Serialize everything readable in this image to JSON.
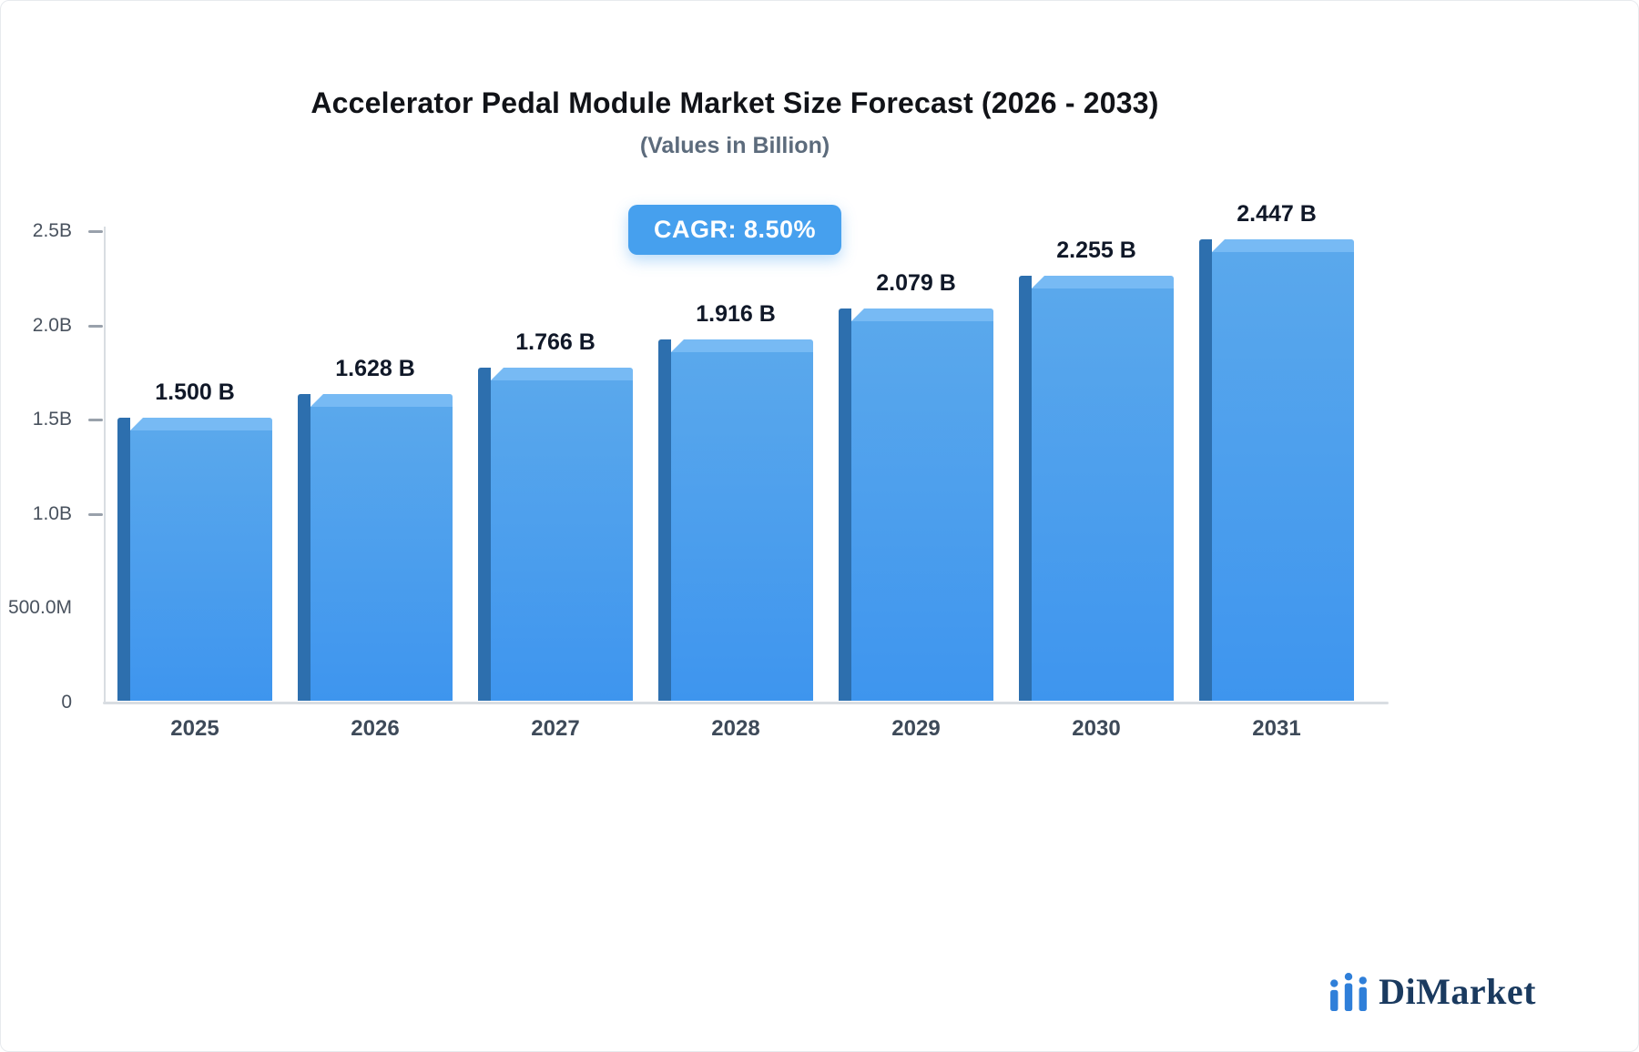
{
  "chart_data": {
    "type": "bar",
    "title": "Accelerator Pedal Module Market Size Forecast (2026 - 2033)",
    "subtitle": "(Values in Billion)",
    "annotation": "CAGR: 8.50%",
    "categories": [
      "2025",
      "2026",
      "2027",
      "2028",
      "2029",
      "2030",
      "2031"
    ],
    "values": [
      1.5,
      1.628,
      1.766,
      1.916,
      2.079,
      2.255,
      2.447
    ],
    "value_labels": [
      "1.500 B",
      "1.628 B",
      "1.766 B",
      "1.916 B",
      "2.079 B",
      "2.255 B",
      "2.447 B"
    ],
    "unit": "Billion",
    "xlabel": "",
    "ylabel": "",
    "ylim": [
      0,
      2.5
    ],
    "y_ticks": [
      {
        "value": 0,
        "label": "0"
      },
      {
        "value": 0.5,
        "label": "500.0M"
      },
      {
        "value": 1,
        "label": "1.0B"
      },
      {
        "value": 1.5,
        "label": "1.5B"
      },
      {
        "value": 2,
        "label": "2.0B"
      },
      {
        "value": 2.5,
        "label": "2.5B"
      }
    ],
    "grid": false,
    "legend": "none",
    "colors": {
      "bar_face_top": "#5AA8EC",
      "bar_face_bottom": "#3E95EE",
      "bar_side": "#2D6FAE",
      "bar_cap": "#77BAF4",
      "badge_bg": "#46A0EE",
      "axis_line": "#D9DDE2",
      "logo_blue": "#2F7FD9"
    }
  },
  "logo": {
    "text": "DiMarket"
  }
}
